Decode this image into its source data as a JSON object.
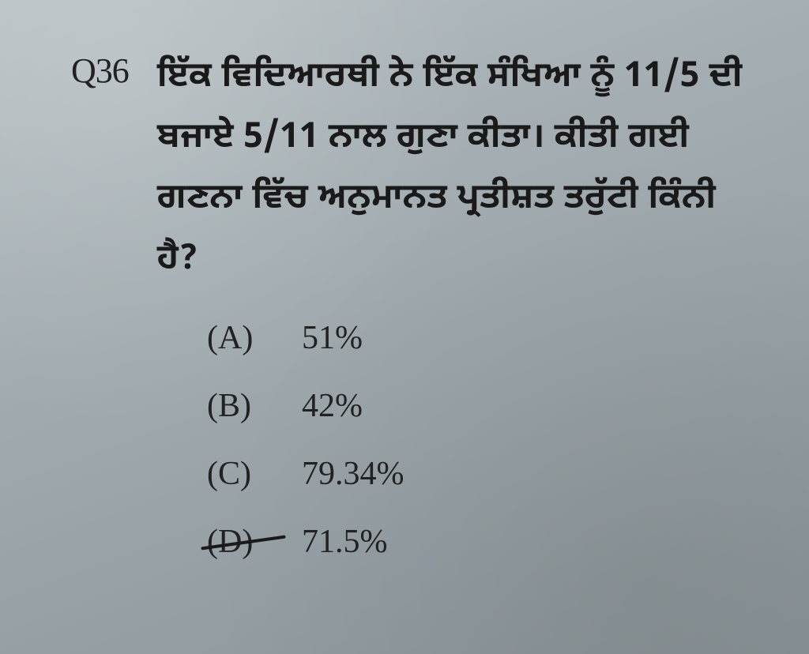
{
  "question": {
    "number": "Q36",
    "text": "ਇੱਕ ਵਿਦਿਆਰਥੀ ਨੇ ਇੱਕ ਸੰਖਿਆ ਨੂੰ 11/5 ਦੀ ਬਜਾਏ 5/11 ਨਾਲ ਗੁਣਾ ਕੀਤਾ। ਕੀਤੀ ਗਈ ਗਣਨਾ ਵਿੱਚ ਅਨੁਮਾਨਤ ਪ੍ਰਤੀਸ਼ਤ ਤਰੁੱਟੀ ਕਿੰਨੀ ਹੈ?"
  },
  "options": {
    "a": {
      "letter": "(A)",
      "value": "51%"
    },
    "b": {
      "letter": "(B)",
      "value": "42%"
    },
    "c": {
      "letter": "(C)",
      "value": "79.34%"
    },
    "d": {
      "letter": "(D)",
      "value": "71.5%"
    }
  },
  "colors": {
    "text": "#1a1a1a",
    "bg_light": "#b8c0c4",
    "bg_dark": "#8a9498"
  }
}
